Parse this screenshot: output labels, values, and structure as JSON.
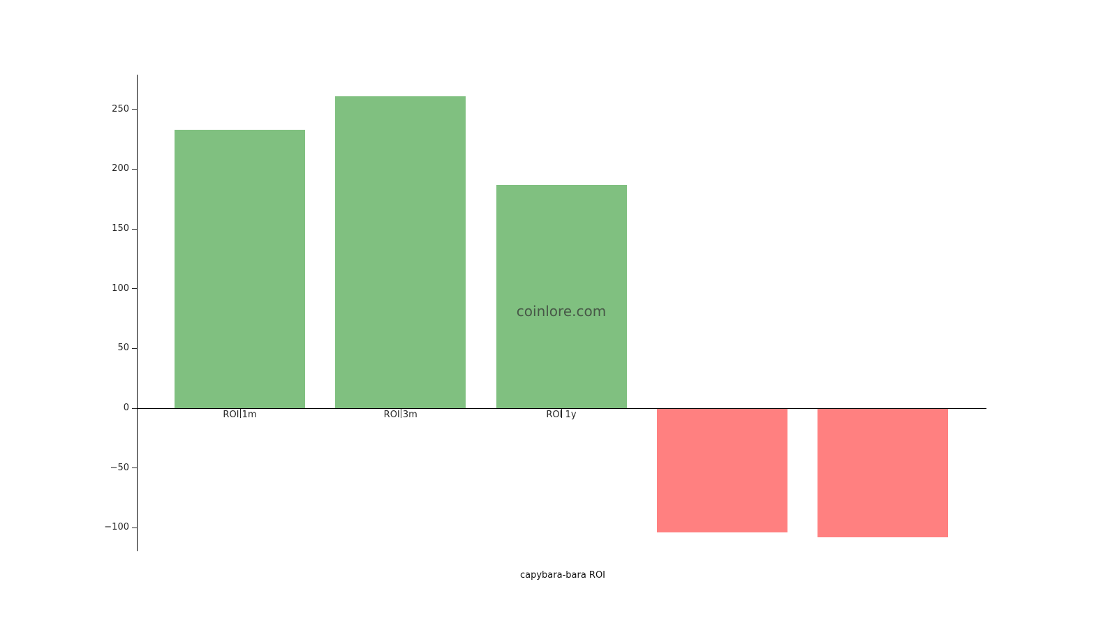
{
  "chart_data": {
    "type": "bar",
    "categories": [
      "ROI 1m",
      "ROI 3m",
      "ROI 1y",
      "",
      ""
    ],
    "values": [
      233,
      261,
      187,
      -104,
      -108
    ],
    "title": "",
    "xlabel": "capybara-bara ROI",
    "ylabel": "",
    "yticks": {
      "values": [
        250,
        200,
        150,
        100,
        50,
        0,
        -50,
        -100
      ],
      "labels": [
        "250",
        "200",
        "150",
        "100",
        "50",
        "0",
        "−50",
        "−100"
      ]
    },
    "ylim": [
      -120,
      279
    ],
    "grid": false,
    "legend": null,
    "positive_color": "#80c080",
    "negative_color": "#ff8080",
    "axis_color": "#000000",
    "tick_text_color": "#262626",
    "watermark": "coinlore.com"
  }
}
